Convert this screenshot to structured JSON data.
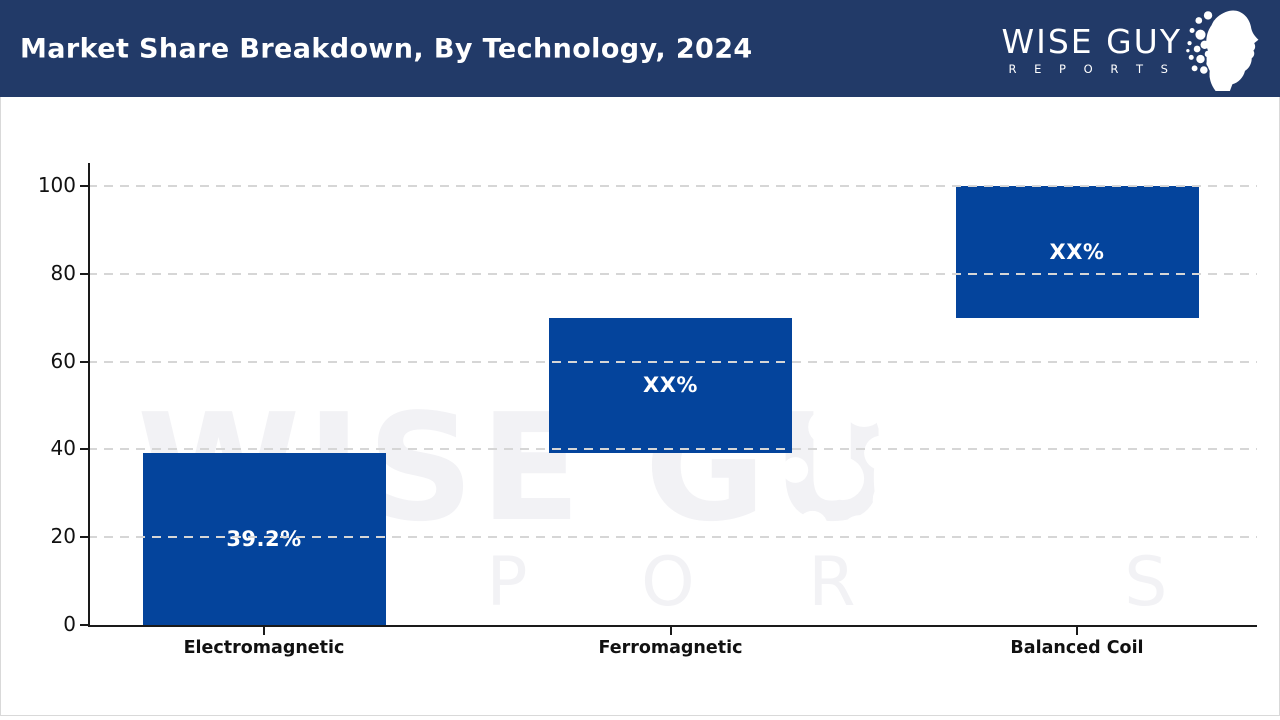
{
  "header": {
    "title": "Market Share Breakdown, By Technology, 2024",
    "bg_color": "#223a68",
    "logo": {
      "line1": "WISE GUY",
      "line2": "R E P O R T S"
    }
  },
  "watermark": {
    "line1": "WISE GUY",
    "line2": "R E P O R T S"
  },
  "chart_data": {
    "type": "bar",
    "subtype": "floating-waterfall-segments",
    "title": "Market Share Breakdown, By Technology, 2024",
    "categories": [
      "Electromagnetic",
      "Ferromagnetic",
      "Balanced Coil"
    ],
    "segments": [
      {
        "category": "Electromagnetic",
        "start": 0,
        "end": 39.2,
        "label": "39.2%"
      },
      {
        "category": "Ferromagnetic",
        "start": 39.2,
        "end": 70,
        "label": "XX%"
      },
      {
        "category": "Balanced Coil",
        "start": 70,
        "end": 100,
        "label": "XX%"
      }
    ],
    "xlabel": "",
    "ylabel": "",
    "ylim": [
      0,
      105
    ],
    "yticks": [
      0,
      20,
      40,
      60,
      80,
      100
    ],
    "grid": "horizontal dashed, drawn over bars",
    "legend": "none",
    "bar_color": "#04449c",
    "bar_label_color": "#ffffff"
  }
}
